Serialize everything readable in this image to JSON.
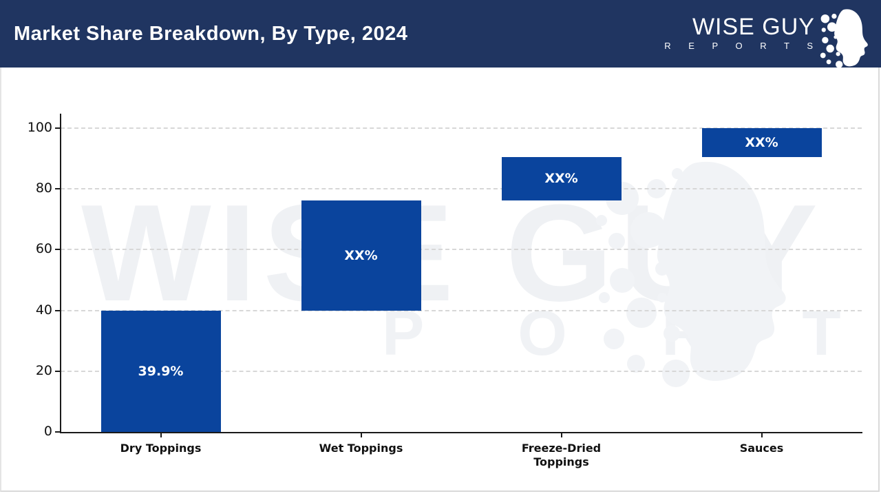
{
  "header": {
    "title": "Market Share Breakdown, By Type, 2024",
    "logo": {
      "line1": "WISE GUY",
      "line2": "REPORTS"
    }
  },
  "watermark": {
    "line1": "WISE GUY",
    "line2": "PORTS"
  },
  "colors": {
    "header_bg": "#203561",
    "bar": "#0a449d",
    "bar_label": "#ffffff",
    "gridline": "#d7d7d7",
    "axis": "#1a1a1a",
    "watermark": "#eff1f4"
  },
  "chart_data": {
    "type": "waterfall",
    "title": "Market Share Breakdown, By Type, 2024",
    "categories": [
      "Dry Toppings",
      "Wet Toppings",
      "Freeze-Dried Toppings",
      "Sauces"
    ],
    "segments": [
      {
        "category": "Dry Toppings",
        "start": 0,
        "end": 39.9,
        "label": "39.9%"
      },
      {
        "category": "Wet Toppings",
        "start": 39.9,
        "end": 76.2,
        "label": "XX%"
      },
      {
        "category": "Freeze-Dried Toppings",
        "start": 76.2,
        "end": 90.5,
        "label": "XX%"
      },
      {
        "category": "Sauces",
        "start": 90.5,
        "end": 100,
        "label": "XX%"
      }
    ],
    "yticks": [
      0,
      20,
      40,
      60,
      80,
      100
    ],
    "ylim": [
      0,
      104.5
    ],
    "xlabel": "",
    "ylabel": "",
    "grid": "dashed-horizontal",
    "legend": "none"
  }
}
